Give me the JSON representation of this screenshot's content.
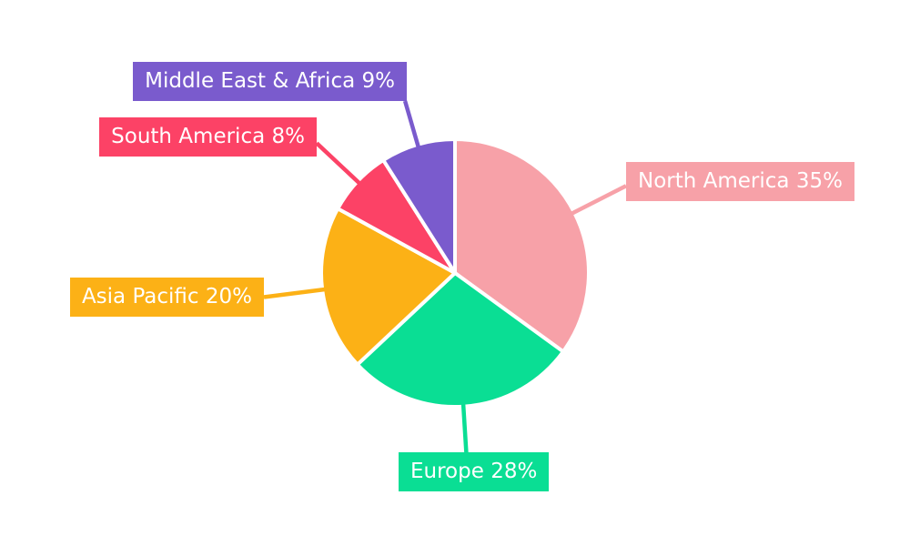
{
  "page": {
    "background": "#FFFFFF"
  },
  "chart_data": {
    "type": "pie",
    "title": "",
    "categories": [
      "North America",
      "Europe",
      "Asia Pacific",
      "South America",
      "Middle East & Africa"
    ],
    "values": [
      35,
      28,
      20,
      8,
      9
    ],
    "unit": "%",
    "callout_labels": [
      "North America 35%",
      "Europe 28%",
      "Asia Pacific 20%",
      "South America 8%",
      "Middle East & Africa 9%"
    ],
    "colors": [
      "#F7A1A8",
      "#0ADE94",
      "#FCB116",
      "#FC4266",
      "#7A5BCD"
    ],
    "slice_border_color": "#FFFFFF",
    "label_text_color": "#FFFFFF",
    "start_angle": "12-o-clock",
    "direction": "clockwise",
    "legend_position": "none",
    "grid": "off"
  }
}
